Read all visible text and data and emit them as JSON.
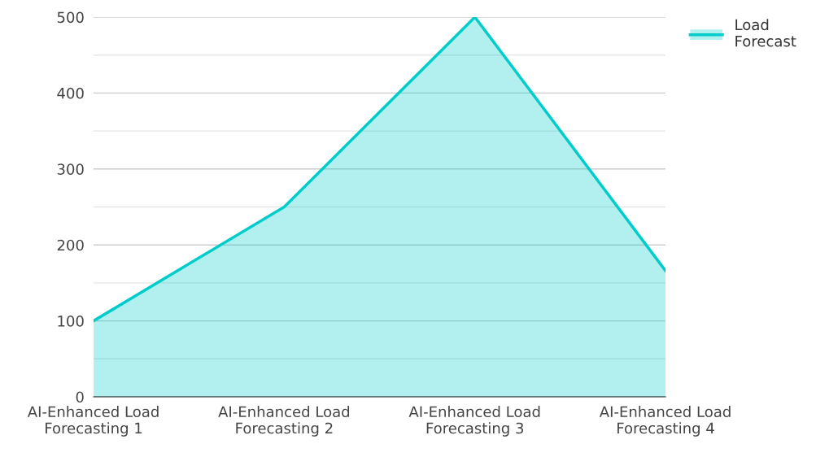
{
  "chart_data": {
    "type": "area",
    "categories": [
      "AI-Enhanced Load Forecasting 1",
      "AI-Enhanced Load Forecasting 2",
      "AI-Enhanced Load Forecasting 3",
      "AI-Enhanced Load Forecasting 4"
    ],
    "series": [
      {
        "name": "Load Forecast",
        "color": "#00cccc",
        "values": [
          100,
          250,
          500,
          166
        ]
      }
    ],
    "ylim": [
      0,
      500
    ],
    "yticks": [
      0,
      {
        "value": 50,
        "label": null
      },
      100,
      {
        "value": 150,
        "label": null
      },
      200,
      {
        "value": 250,
        "label": null
      },
      300,
      {
        "value": 350,
        "label": null
      },
      400,
      {
        "value": 450,
        "label": null
      },
      500
    ],
    "grid": "y",
    "legend": "top right",
    "marker": "none",
    "line_style": "solid"
  }
}
